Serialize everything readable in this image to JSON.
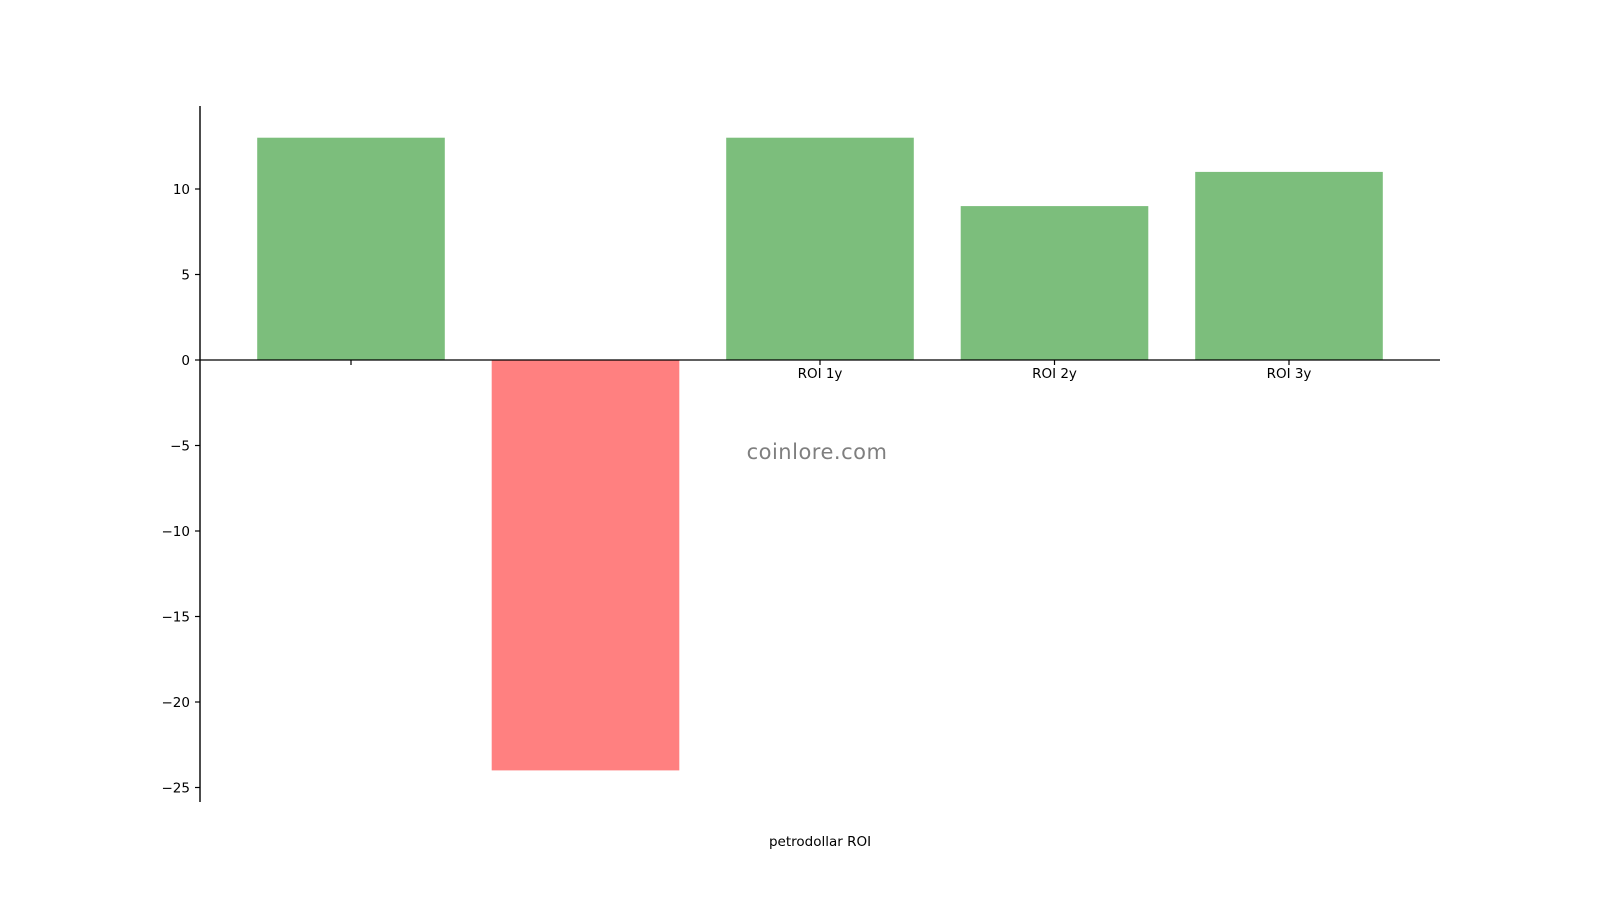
{
  "watermark": {
    "text": "coinlore.com",
    "color": "#7f7f7f"
  },
  "chart_data": {
    "type": "bar",
    "title": "",
    "xlabel": "petrodollar ROI",
    "ylabel": "",
    "categories": [
      "",
      "",
      "ROI 1y",
      "ROI 2y",
      "ROI 3y"
    ],
    "values": [
      13,
      -24,
      13,
      9,
      11
    ],
    "bar_colors": [
      "#7cbe7c",
      "#ff8080",
      "#7cbe7c",
      "#7cbe7c",
      "#7cbe7c"
    ],
    "colors": {
      "positive": "#7cbe7c",
      "negative": "#ff8080",
      "axis": "#000000",
      "tick_label": "#000000"
    },
    "ylim": [
      -25.85,
      14.85
    ],
    "yticks": [
      10,
      5,
      0,
      -5,
      -10,
      -15,
      -20,
      -25
    ],
    "ytick_labels": [
      "10",
      "5",
      "0",
      "−5",
      "−10",
      "−15",
      "−20",
      "−25"
    ],
    "grid": false,
    "legend": "none",
    "baseline": 0
  }
}
